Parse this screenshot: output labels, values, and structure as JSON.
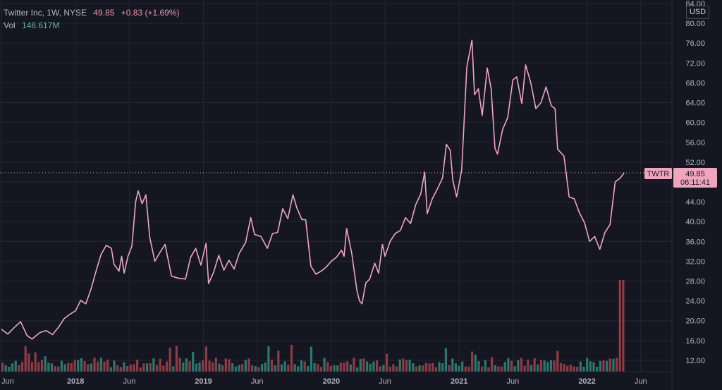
{
  "header": {
    "symbol_desc": "Twitter Inc, 1W, NYSE",
    "last": "49.85",
    "change": "+0.83 (+1.69%)",
    "vol_label": "Vol",
    "vol_value": "146.617M"
  },
  "currency_button": "USD",
  "price_tag": {
    "symbol": "TWTR",
    "price": "49.85",
    "countdown": "06:11:41"
  },
  "colors": {
    "background": "#141722",
    "line": "#f0a5bd",
    "vol_up": "#2e8b7a",
    "vol_down": "#a6424a",
    "grid": "#232633",
    "axis_text": "#b2b5be"
  },
  "chart_data": {
    "type": "line",
    "y_range": [
      10,
      84
    ],
    "y_ticks": [
      "12.00",
      "16.00",
      "20.00",
      "24.00",
      "28.00",
      "32.00",
      "36.00",
      "40.00",
      "44.00",
      "48.00",
      "52.00",
      "56.00",
      "60.00",
      "64.00",
      "68.00",
      "72.00",
      "76.00",
      "80.00",
      "84.00"
    ],
    "x_ticks": [
      {
        "label": "Jun",
        "x": 2017.42
      },
      {
        "label": "2018",
        "x": 2018.0
      },
      {
        "label": "Jun",
        "x": 2018.42
      },
      {
        "label": "2019",
        "x": 2019.0
      },
      {
        "label": "Jun",
        "x": 2019.42
      },
      {
        "label": "2020",
        "x": 2020.0
      },
      {
        "label": "Jun",
        "x": 2020.42
      },
      {
        "label": "2021",
        "x": 2021.0
      },
      {
        "label": "Jun",
        "x": 2021.42
      },
      {
        "label": "2022",
        "x": 2022.0
      },
      {
        "label": "Jun",
        "x": 2022.42
      }
    ],
    "x_range": [
      2017.42,
      2022.62
    ],
    "series": [
      {
        "values": [
          [
            2017.42,
            18.3
          ],
          [
            2017.47,
            17.3
          ],
          [
            2017.52,
            18.6
          ],
          [
            2017.57,
            19.8
          ],
          [
            2017.62,
            17.0
          ],
          [
            2017.66,
            16.3
          ],
          [
            2017.72,
            17.6
          ],
          [
            2017.77,
            18.0
          ],
          [
            2017.82,
            17.2
          ],
          [
            2017.87,
            18.8
          ],
          [
            2017.91,
            20.4
          ],
          [
            2017.95,
            21.2
          ],
          [
            2018.0,
            22.0
          ],
          [
            2018.04,
            24.1
          ],
          [
            2018.08,
            23.4
          ],
          [
            2018.12,
            26.3
          ],
          [
            2018.16,
            30.0
          ],
          [
            2018.2,
            33.4
          ],
          [
            2018.24,
            35.2
          ],
          [
            2018.28,
            34.6
          ],
          [
            2018.3,
            31.4
          ],
          [
            2018.34,
            30.0
          ],
          [
            2018.36,
            33.0
          ],
          [
            2018.38,
            29.6
          ],
          [
            2018.41,
            33.0
          ],
          [
            2018.44,
            35.0
          ],
          [
            2018.47,
            44.0
          ],
          [
            2018.49,
            46.2
          ],
          [
            2018.52,
            43.6
          ],
          [
            2018.55,
            45.4
          ],
          [
            2018.58,
            36.8
          ],
          [
            2018.62,
            32.0
          ],
          [
            2018.66,
            33.8
          ],
          [
            2018.7,
            35.4
          ],
          [
            2018.75,
            29.0
          ],
          [
            2018.8,
            28.6
          ],
          [
            2018.86,
            28.4
          ],
          [
            2018.9,
            32.8
          ],
          [
            2018.94,
            34.6
          ],
          [
            2018.98,
            31.2
          ],
          [
            2019.02,
            35.6
          ],
          [
            2019.04,
            27.5
          ],
          [
            2019.08,
            29.8
          ],
          [
            2019.12,
            33.2
          ],
          [
            2019.16,
            30.2
          ],
          [
            2019.2,
            32.2
          ],
          [
            2019.24,
            30.4
          ],
          [
            2019.28,
            33.6
          ],
          [
            2019.33,
            35.8
          ],
          [
            2019.37,
            40.8
          ],
          [
            2019.4,
            37.4
          ],
          [
            2019.45,
            37.0
          ],
          [
            2019.5,
            34.6
          ],
          [
            2019.54,
            37.6
          ],
          [
            2019.58,
            37.8
          ],
          [
            2019.62,
            42.6
          ],
          [
            2019.66,
            40.6
          ],
          [
            2019.7,
            45.4
          ],
          [
            2019.73,
            42.8
          ],
          [
            2019.77,
            40.4
          ],
          [
            2019.8,
            40.4
          ],
          [
            2019.84,
            31.0
          ],
          [
            2019.88,
            29.4
          ],
          [
            2019.92,
            30.0
          ],
          [
            2019.96,
            30.8
          ],
          [
            2020.0,
            32.0
          ],
          [
            2020.04,
            32.8
          ],
          [
            2020.08,
            34.2
          ],
          [
            2020.1,
            33.0
          ],
          [
            2020.12,
            38.6
          ],
          [
            2020.16,
            33.6
          ],
          [
            2020.2,
            26.2
          ],
          [
            2020.22,
            24.0
          ],
          [
            2020.24,
            23.4
          ],
          [
            2020.27,
            27.6
          ],
          [
            2020.3,
            28.4
          ],
          [
            2020.34,
            31.6
          ],
          [
            2020.37,
            29.6
          ],
          [
            2020.4,
            35.4
          ],
          [
            2020.42,
            33.0
          ],
          [
            2020.46,
            36.0
          ],
          [
            2020.5,
            37.6
          ],
          [
            2020.54,
            38.2
          ],
          [
            2020.58,
            40.8
          ],
          [
            2020.62,
            39.6
          ],
          [
            2020.66,
            43.4
          ],
          [
            2020.7,
            45.6
          ],
          [
            2020.73,
            50.0
          ],
          [
            2020.75,
            41.6
          ],
          [
            2020.79,
            44.6
          ],
          [
            2020.83,
            46.6
          ],
          [
            2020.87,
            48.8
          ],
          [
            2020.9,
            55.6
          ],
          [
            2020.93,
            54.4
          ],
          [
            2020.95,
            48.4
          ],
          [
            2020.98,
            45.0
          ],
          [
            2021.02,
            50.4
          ],
          [
            2021.06,
            71.2
          ],
          [
            2021.1,
            76.6
          ],
          [
            2021.12,
            65.6
          ],
          [
            2021.15,
            66.8
          ],
          [
            2021.18,
            61.4
          ],
          [
            2021.22,
            71.0
          ],
          [
            2021.25,
            66.8
          ],
          [
            2021.28,
            54.8
          ],
          [
            2021.3,
            53.6
          ],
          [
            2021.34,
            58.6
          ],
          [
            2021.38,
            61.0
          ],
          [
            2021.42,
            68.6
          ],
          [
            2021.45,
            69.2
          ],
          [
            2021.49,
            63.8
          ],
          [
            2021.52,
            71.6
          ],
          [
            2021.56,
            68.0
          ],
          [
            2021.6,
            62.8
          ],
          [
            2021.64,
            64.0
          ],
          [
            2021.68,
            67.2
          ],
          [
            2021.72,
            63.4
          ],
          [
            2021.75,
            62.8
          ],
          [
            2021.77,
            54.6
          ],
          [
            2021.82,
            53.2
          ],
          [
            2021.86,
            45.0
          ],
          [
            2021.9,
            44.6
          ],
          [
            2021.94,
            41.8
          ],
          [
            2021.98,
            39.8
          ],
          [
            2022.02,
            36.0
          ],
          [
            2022.06,
            37.0
          ],
          [
            2022.1,
            34.4
          ],
          [
            2022.14,
            37.8
          ],
          [
            2022.18,
            39.4
          ],
          [
            2022.22,
            48.0
          ],
          [
            2022.26,
            48.8
          ],
          [
            2022.29,
            49.85
          ]
        ]
      },
      {
        "name": "Vol"
      }
    ]
  }
}
